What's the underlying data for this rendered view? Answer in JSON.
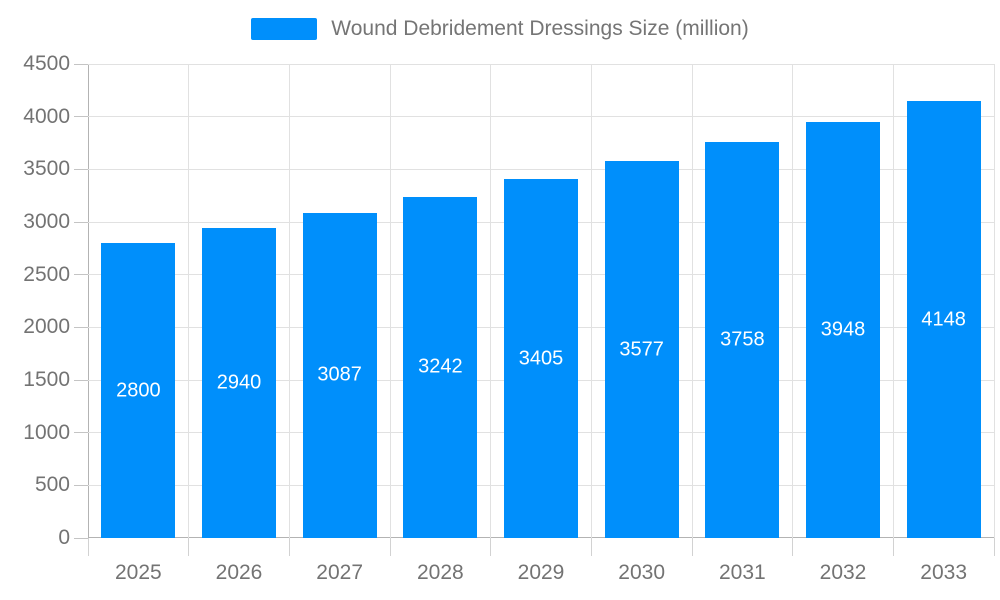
{
  "legend": {
    "label": "Wound Debridement Dressings Size (million)"
  },
  "chart_data": {
    "type": "bar",
    "title": "Wound Debridement Dressings Size (million)",
    "categories": [
      "2025",
      "2026",
      "2027",
      "2028",
      "2029",
      "2030",
      "2031",
      "2032",
      "2033"
    ],
    "values": [
      2800,
      2940,
      3087,
      3242,
      3405,
      3577,
      3758,
      3948,
      4148
    ],
    "xlabel": "",
    "ylabel": "",
    "ylim": [
      0,
      4500
    ],
    "ytick_step": 500,
    "grid": true,
    "legend_position": "top",
    "bar_color": "#008FFB",
    "data_label_color": "#ffffff",
    "axis_label_color": "#737373"
  }
}
